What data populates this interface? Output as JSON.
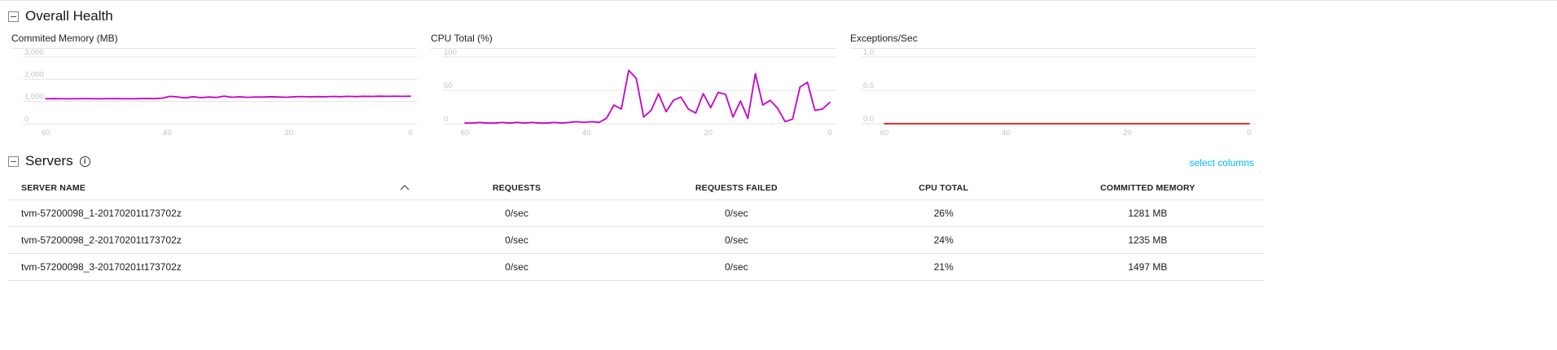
{
  "sections": {
    "overall_health": {
      "title": "Overall Health"
    },
    "servers": {
      "title": "Servers",
      "select_columns_label": "select columns"
    }
  },
  "colors": {
    "memory_line": "#c800c8",
    "cpu_line": "#c800c8",
    "exceptions_line": "#ee1111",
    "link": "#00b7ef"
  },
  "chart_data": [
    {
      "type": "line",
      "title": "Commited Memory (MB)",
      "color": "#c800c8",
      "ylim": [
        0,
        3000
      ],
      "yticks": [
        {
          "label": "3,000",
          "value": 3000
        },
        {
          "label": "2,000",
          "value": 2000
        },
        {
          "label": "1,000",
          "value": 1000
        },
        {
          "label": "0",
          "value": 0
        }
      ],
      "xticks": [
        "60",
        "40",
        "20",
        "0"
      ],
      "values": [
        1120,
        1128,
        1122,
        1118,
        1125,
        1130,
        1124,
        1119,
        1126,
        1132,
        1125,
        1120,
        1128,
        1135,
        1127,
        1150,
        1230,
        1205,
        1160,
        1215,
        1170,
        1200,
        1180,
        1240,
        1190,
        1210,
        1185,
        1205,
        1195,
        1215,
        1200,
        1190,
        1212,
        1222,
        1208,
        1218,
        1210,
        1225,
        1215,
        1228,
        1220,
        1232,
        1224,
        1235,
        1228,
        1238,
        1230,
        1235
      ]
    },
    {
      "type": "line",
      "title": "CPU Total (%)",
      "color": "#c800c8",
      "ylim": [
        0,
        100
      ],
      "yticks": [
        {
          "label": "100",
          "value": 100
        },
        {
          "label": "50",
          "value": 50
        },
        {
          "label": "0",
          "value": 0
        }
      ],
      "xticks": [
        "60",
        "40",
        "20",
        "0"
      ],
      "values": [
        1,
        1,
        2,
        1,
        1,
        2,
        1,
        2,
        1,
        2,
        1,
        1,
        2,
        1,
        2,
        3,
        2,
        3,
        2,
        8,
        28,
        22,
        80,
        68,
        10,
        20,
        45,
        18,
        35,
        40,
        22,
        16,
        45,
        24,
        47,
        44,
        10,
        34,
        8,
        75,
        28,
        35,
        23,
        3,
        7,
        55,
        62,
        20,
        22,
        32
      ]
    },
    {
      "type": "line",
      "title": "Exceptions/Sec",
      "color": "#ee1111",
      "ylim": [
        0,
        1
      ],
      "yticks": [
        {
          "label": "1.0",
          "value": 1
        },
        {
          "label": "0.5",
          "value": 0.5
        },
        {
          "label": "0.0",
          "value": 0
        }
      ],
      "xticks": [
        "60",
        "40",
        "20",
        "0"
      ],
      "values": [
        0,
        0,
        0,
        0,
        0,
        0,
        0,
        0,
        0,
        0,
        0,
        0,
        0,
        0,
        0,
        0,
        0,
        0,
        0,
        0,
        0,
        0,
        0,
        0,
        0
      ]
    }
  ],
  "servers_table": {
    "columns": [
      "SERVER NAME",
      "REQUESTS",
      "REQUESTS FAILED",
      "CPU TOTAL",
      "COMMITTED MEMORY"
    ],
    "rows": [
      [
        "tvm-57200098_1-20170201t173702z",
        "0/sec",
        "0/sec",
        "26%",
        "1281 MB"
      ],
      [
        "tvm-57200098_2-20170201t173702z",
        "0/sec",
        "0/sec",
        "24%",
        "1235 MB"
      ],
      [
        "tvm-57200098_3-20170201t173702z",
        "0/sec",
        "0/sec",
        "21%",
        "1497 MB"
      ]
    ]
  }
}
